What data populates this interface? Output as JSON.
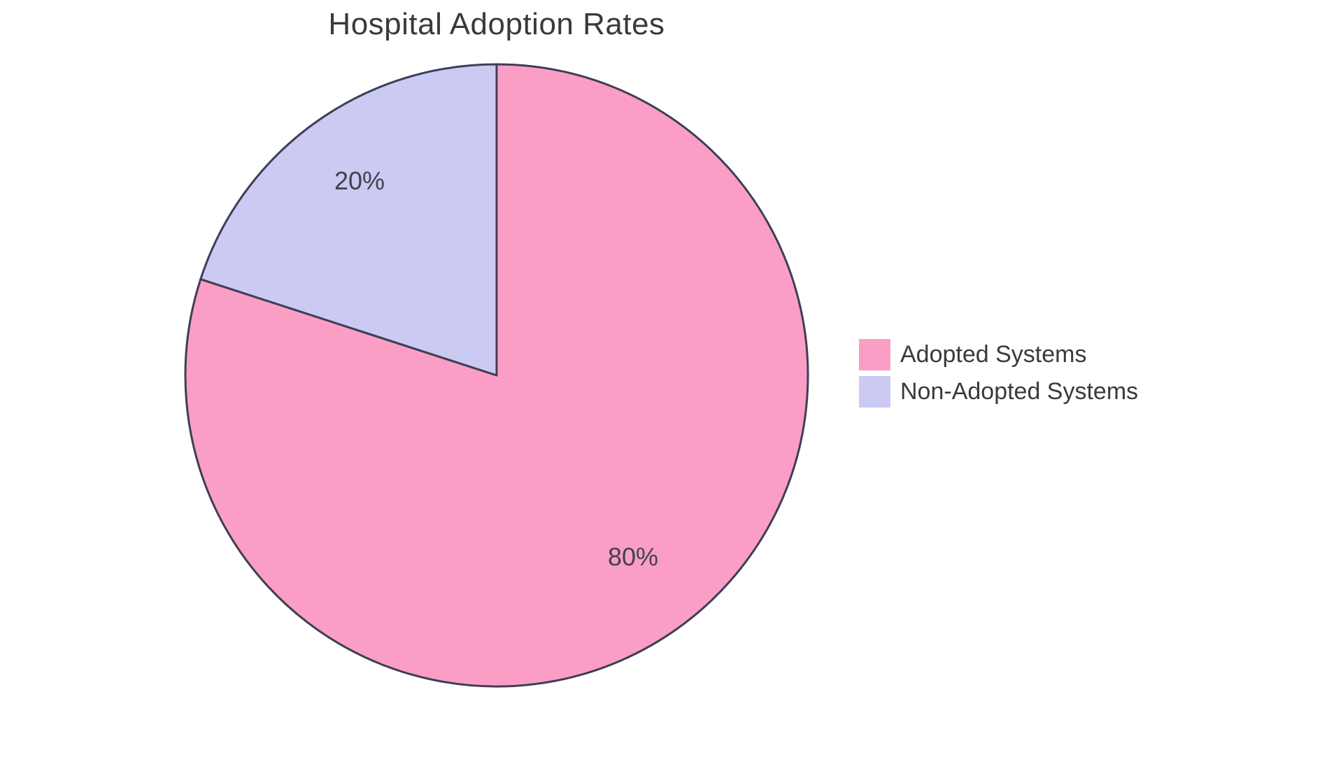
{
  "chart_data": {
    "type": "pie",
    "title": "Hospital Adoption Rates",
    "legend_position": "right",
    "background_color": "#ffffff",
    "stroke_color": "#3e3e55",
    "stroke_width": 3,
    "title_color": "#3a3a3a",
    "label_color": "#42424c",
    "start_angle": "12 o'clock, clockwise",
    "slices": [
      {
        "label": "Adopted Systems",
        "value": 80,
        "percent_label": "80%",
        "color": "#fa9ec6"
      },
      {
        "label": "Non-Adopted Systems",
        "value": 20,
        "percent_label": "20%",
        "color": "#cacaf3"
      }
    ]
  }
}
